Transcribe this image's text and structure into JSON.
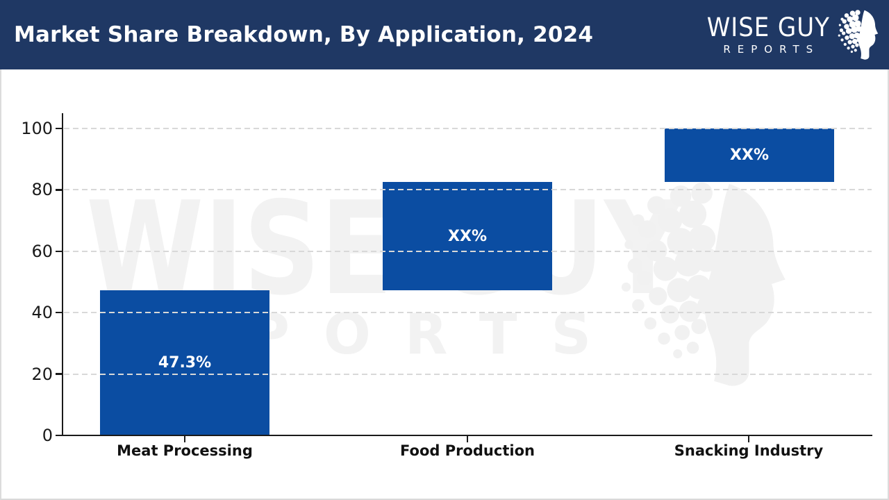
{
  "header": {
    "title": "Market Share Breakdown, By Application, 2024",
    "logo": {
      "line1": "WISE GUY",
      "line2": "REPORTS"
    }
  },
  "watermark": {
    "line1": "WISE GUY",
    "line2": "REPORTS"
  },
  "chart_data": {
    "type": "bar",
    "subtype": "waterfall",
    "title": "Market Share Breakdown, By Application, 2024",
    "categories": [
      "Meat Processing",
      "Food Production",
      "Snacking Industry"
    ],
    "bars": [
      {
        "category": "Meat Processing",
        "start": 0,
        "end": 47.3,
        "label": "47.3%"
      },
      {
        "category": "Food Production",
        "start": 47.3,
        "end": 82.5,
        "label": "XX%"
      },
      {
        "category": "Snacking Industry",
        "start": 82.5,
        "end": 100,
        "label": "XX%"
      }
    ],
    "ylabel": "",
    "xlabel": "",
    "yticks": [
      0,
      20,
      40,
      60,
      80,
      100
    ],
    "ylim": [
      0,
      100
    ],
    "grid": "horizontal-dashed",
    "legend": "none",
    "bar_color": "#0b4da2",
    "bar_label_color": "#ffffff",
    "header_color": "#1f3864"
  }
}
